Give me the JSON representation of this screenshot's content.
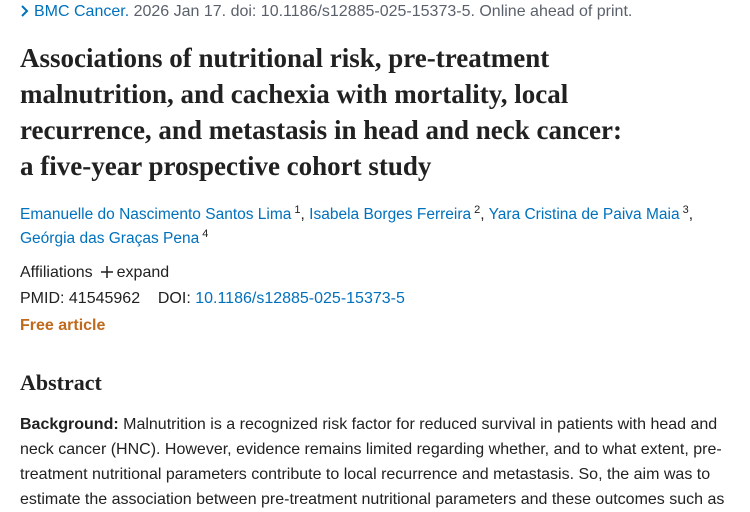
{
  "citation": {
    "journal": "BMC Cancer.",
    "details": "2026 Jan 17. doi: 10.1186/s12885-025-15373-5. Online ahead of print."
  },
  "title_lines": [
    "Associations of nutritional risk, pre-treatment",
    "malnutrition, and cachexia with mortality, local",
    "recurrence, and metastasis in head and neck cancer:",
    "a five-year prospective cohort study"
  ],
  "authors": [
    {
      "name": "Emanuelle do Nascimento Santos Lima",
      "affiliation": "1",
      "separator": ","
    },
    {
      "name": "Isabela Borges Ferreira",
      "affiliation": "2",
      "separator": ","
    },
    {
      "name": "Yara Cristina de Paiva Maia",
      "affiliation": "3",
      "separator": ","
    },
    {
      "name": "Geórgia das Graças Pena",
      "affiliation": "4"
    }
  ],
  "affiliations": {
    "label": "Affiliations",
    "expand": "expand"
  },
  "pmid": {
    "label": "PMID:",
    "value": "41545962"
  },
  "doi": {
    "label": "DOI:",
    "value": "10.1186/s12885-025-15373-5"
  },
  "access": "Free article",
  "abstract": {
    "heading": "Abstract",
    "background_label": "Background:",
    "background_lines": [
      " Malnutrition is a recognized risk factor for reduced survival in patients with head and",
      "neck cancer (HNC). However, evidence remains limited regarding whether, and to what extent, pre-",
      "treatment nutritional parameters contribute to local recurrence and metastasis. So, the aim was to",
      "estimate the association between pre-treatment nutritional parameters and these outcomes such as"
    ]
  }
}
